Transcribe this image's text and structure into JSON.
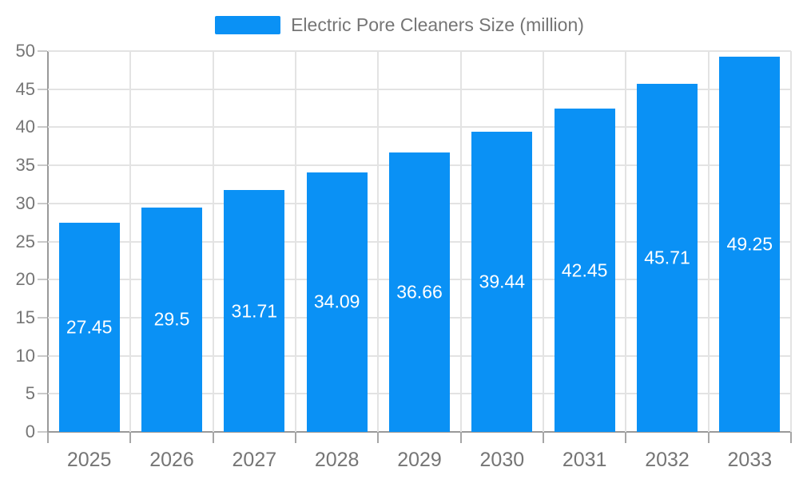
{
  "legend": {
    "label": "Electric Pore Cleaners Size (million)"
  },
  "chart_data": {
    "type": "bar",
    "title": "Electric Pore Cleaners Size (million)",
    "categories": [
      "2025",
      "2026",
      "2027",
      "2028",
      "2029",
      "2030",
      "2031",
      "2032",
      "2033"
    ],
    "values": [
      27.45,
      29.5,
      31.71,
      34.09,
      36.66,
      39.44,
      42.45,
      45.71,
      49.25
    ],
    "value_labels": [
      "27.45",
      "29.5",
      "31.71",
      "34.09",
      "36.66",
      "39.44",
      "42.45",
      "45.71",
      "49.25"
    ],
    "xlabel": "",
    "ylabel": "",
    "ylim": [
      0,
      50
    ],
    "y_ticks": [
      0,
      5,
      10,
      15,
      20,
      25,
      30,
      35,
      40,
      45,
      50
    ],
    "grid": true,
    "legend_position": "top",
    "bar_color": "#0a91f5",
    "value_label_color": "#ffffff"
  },
  "colors": {
    "bar": "#0a91f5",
    "axis": "#999999",
    "gridline": "#e3e3e3",
    "tick_text": "#757575",
    "background": "#ffffff"
  }
}
